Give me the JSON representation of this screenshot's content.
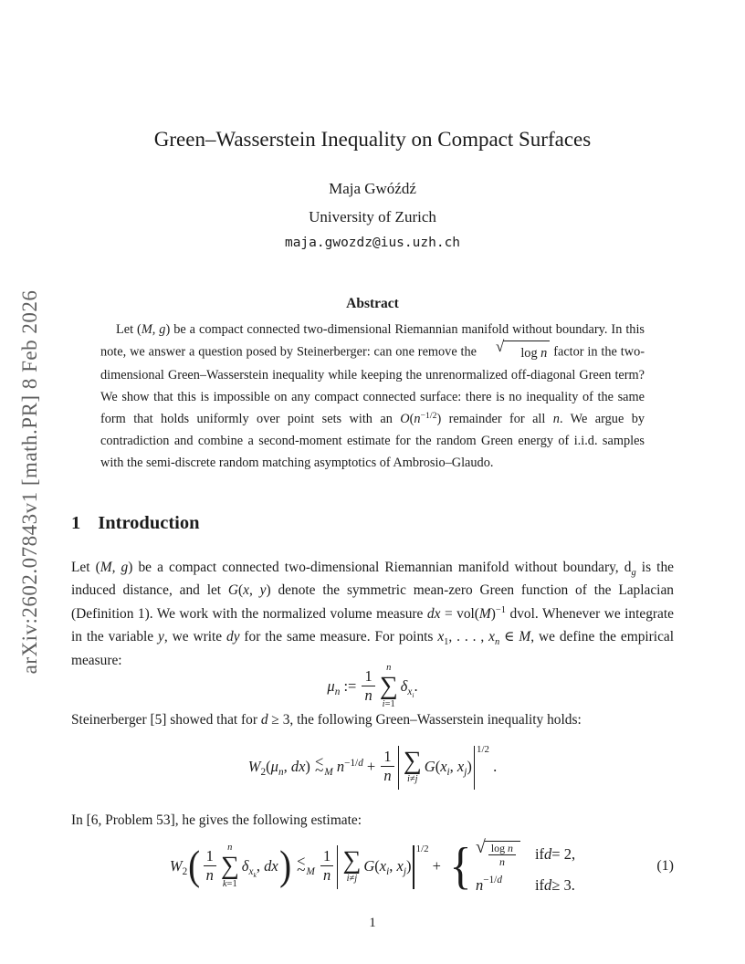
{
  "stamp": {
    "text": "arXiv:2602.07843v1  [math.PR]  8 Feb 2026"
  },
  "header": {
    "title": "Green–Wasserstein Inequality on Compact Surfaces",
    "author": "Maja Gwóźdź",
    "affiliation": "University of Zurich",
    "email": "maja.gwozdz@ius.uzh.ch"
  },
  "abstract": {
    "heading": "Abstract",
    "body": [
      {
        "t": "Let ("
      },
      {
        "s": "i",
        "t": "M, g"
      },
      {
        "t": ") be a compact connected two-dimensional Riemannian manifold without boundary. In this note, we answer a question posed by Steinerberger: can one remove the "
      },
      {
        "s": "sqrt",
        "c": [
          {
            "t": "log "
          },
          {
            "s": "i",
            "t": "n"
          }
        ]
      },
      {
        "t": " factor in the two-dimensional Green–Wasserstein inequality while keeping the unrenormalized off-diagonal Green term? We show that this is impossible on any compact connected surface: there is no inequality of the same form that holds uniformly over point sets with an "
      },
      {
        "s": "i",
        "t": "O"
      },
      {
        "t": "("
      },
      {
        "s": "i",
        "t": "n"
      },
      {
        "s": "sup",
        "t": "−1/2"
      },
      {
        "t": ") remainder for all "
      },
      {
        "s": "i",
        "t": "n"
      },
      {
        "t": ". We argue by contradiction and combine a second-moment estimate for the random Green energy of i.i.d. samples with the semi-discrete random matching asymptotics of Ambrosio–Glaudo."
      }
    ]
  },
  "section1": {
    "number": "1",
    "title": "Introduction"
  },
  "paragraphs": {
    "intro_p1": [
      {
        "t": "Let ("
      },
      {
        "s": "i",
        "t": "M, g"
      },
      {
        "t": ") be a compact connected two-dimensional Riemannian manifold without boundary, d"
      },
      {
        "s": "sub i",
        "t": "g"
      },
      {
        "t": " is the induced distance, and let "
      },
      {
        "s": "i",
        "t": "G"
      },
      {
        "t": "("
      },
      {
        "s": "i",
        "t": "x, y"
      },
      {
        "t": ") denote the symmetric mean-zero Green function of the Laplacian (Definition 1). We work with the normalized volume measure "
      },
      {
        "s": "i",
        "t": "dx"
      },
      {
        "t": " = vol("
      },
      {
        "s": "i",
        "t": "M"
      },
      {
        "t": ")"
      },
      {
        "s": "sup",
        "t": "−1"
      },
      {
        "t": " dvol. Whenever we integrate in the variable "
      },
      {
        "s": "i",
        "t": "y"
      },
      {
        "t": ", we write "
      },
      {
        "s": "i",
        "t": "dy"
      },
      {
        "t": " for the same measure. For points "
      },
      {
        "s": "i",
        "t": "x"
      },
      {
        "s": "sub",
        "t": "1"
      },
      {
        "t": ", . . . , "
      },
      {
        "s": "i",
        "t": "x"
      },
      {
        "s": "sub i",
        "t": "n"
      },
      {
        "t": " ∈ "
      },
      {
        "s": "i",
        "t": "M"
      },
      {
        "t": ", we define the empirical measure:"
      }
    ],
    "steinerberger_line": [
      {
        "t": "Steinerberger [5] showed that for "
      },
      {
        "s": "i",
        "t": "d"
      },
      {
        "t": " ≥ 3, the following Green–Wasserstein inequality holds:"
      }
    ],
    "estimate_line": [
      {
        "t": "In [6, Problem 53], he gives the following estimate:"
      }
    ]
  },
  "equations": {
    "empirical": {
      "segs": [
        {
          "s": "i",
          "t": "μ"
        },
        {
          "s": "sub i",
          "t": "n"
        },
        {
          "t": " := "
        },
        {
          "s": "frac",
          "n": [
            {
              "t": "1"
            }
          ],
          "d": [
            {
              "s": "i",
              "t": "n"
            }
          ]
        },
        {
          "s": "sum",
          "top": [
            {
              "s": "i",
              "t": "n"
            }
          ],
          "bot": [
            {
              "s": "i",
              "t": "i"
            },
            {
              "t": "=1"
            }
          ]
        },
        {
          "s": "i",
          "t": "δ"
        },
        {
          "s": "sub",
          "c": [
            {
              "s": "i",
              "t": "x"
            },
            {
              "s": "sub i",
              "t": "i"
            }
          ]
        },
        {
          "t": "."
        }
      ]
    },
    "green_wasserstein": {
      "segs": [
        {
          "s": "i",
          "t": "W"
        },
        {
          "s": "sub",
          "t": "2"
        },
        {
          "t": "("
        },
        {
          "s": "i",
          "t": "μ"
        },
        {
          "s": "sub i",
          "t": "n"
        },
        {
          "t": ", "
        },
        {
          "s": "i",
          "t": "dx"
        },
        {
          "t": ")  "
        },
        {
          "s": "lesssim"
        },
        {
          "s": "sub i",
          "t": "M"
        },
        {
          "t": "  "
        },
        {
          "s": "i",
          "t": "n"
        },
        {
          "s": "sup",
          "c": [
            {
              "t": "−1/"
            },
            {
              "s": "i",
              "t": "d"
            }
          ]
        },
        {
          "t": " + "
        },
        {
          "s": "frac",
          "n": [
            {
              "t": "1"
            }
          ],
          "d": [
            {
              "s": "i",
              "t": "n"
            }
          ]
        },
        {
          "s": "bar"
        },
        {
          "s": "sum",
          "bot": [
            {
              "s": "i",
              "t": "i"
            },
            {
              "t": "≠"
            },
            {
              "s": "i",
              "t": "j"
            }
          ]
        },
        {
          "s": "i",
          "t": "G"
        },
        {
          "t": "("
        },
        {
          "s": "i",
          "t": "x"
        },
        {
          "s": "sub i",
          "t": "i"
        },
        {
          "t": ", "
        },
        {
          "s": "i",
          "t": "x"
        },
        {
          "s": "sub i",
          "t": "j"
        },
        {
          "t": ")"
        },
        {
          "s": "bar"
        },
        {
          "s": "supbig",
          "t": "1/2"
        },
        {
          "t": " ."
        }
      ]
    },
    "main_estimate": {
      "tag": "(1)",
      "segs": [
        {
          "s": "i",
          "t": "W"
        },
        {
          "s": "sub",
          "t": "2"
        },
        {
          "s": "big",
          "t": "("
        },
        {
          "s": "frac",
          "n": [
            {
              "t": "1"
            }
          ],
          "d": [
            {
              "s": "i",
              "t": "n"
            }
          ]
        },
        {
          "s": "sum",
          "top": [
            {
              "s": "i",
              "t": "n"
            }
          ],
          "bot": [
            {
              "s": "i",
              "t": "k"
            },
            {
              "t": "=1"
            }
          ]
        },
        {
          "s": "i",
          "t": "δ"
        },
        {
          "s": "sub",
          "c": [
            {
              "s": "i",
              "t": "x"
            },
            {
              "s": "sub i",
              "t": "k"
            }
          ]
        },
        {
          "t": ", "
        },
        {
          "s": "i",
          "t": "dx"
        },
        {
          "s": "big",
          "t": ")"
        },
        {
          "t": " "
        },
        {
          "s": "lesssim"
        },
        {
          "s": "sub i",
          "t": "M"
        },
        {
          "t": " "
        },
        {
          "s": "frac",
          "n": [
            {
              "t": "1"
            }
          ],
          "d": [
            {
              "s": "i",
              "t": "n"
            }
          ]
        },
        {
          "s": "bar"
        },
        {
          "s": "sum",
          "bot": [
            {
              "s": "i",
              "t": "i"
            },
            {
              "t": "≠"
            },
            {
              "s": "i",
              "t": "j"
            }
          ]
        },
        {
          "s": "i",
          "t": "G"
        },
        {
          "t": "("
        },
        {
          "s": "i",
          "t": "x"
        },
        {
          "s": "sub i",
          "t": "i"
        },
        {
          "t": ", "
        },
        {
          "s": "i",
          "t": "x"
        },
        {
          "s": "sub i",
          "t": "j"
        },
        {
          "t": ")"
        },
        {
          "s": "bar"
        },
        {
          "s": "supbig",
          "t": "1/2"
        },
        {
          "t": "  + "
        },
        {
          "s": "cases",
          "rows": [
            [
              [
                {
                  "s": "sqrt",
                  "c": [
                    {
                      "s": "fracsm",
                      "n": [
                        {
                          "t": "log "
                        },
                        {
                          "s": "i",
                          "t": "n"
                        }
                      ],
                      "d": [
                        {
                          "s": "i",
                          "t": "n"
                        }
                      ]
                    }
                  ]
                }
              ],
              [
                {
                  "t": "if "
                },
                {
                  "s": "i",
                  "t": "d"
                },
                {
                  "t": " = 2,"
                }
              ]
            ],
            [
              [
                {
                  "s": "i",
                  "t": "n"
                },
                {
                  "s": "sup",
                  "c": [
                    {
                      "t": "−1/"
                    },
                    {
                      "s": "i",
                      "t": "d"
                    }
                  ]
                }
              ],
              [
                {
                  "t": "if "
                },
                {
                  "s": "i",
                  "t": "d"
                },
                {
                  "t": " ≥ 3."
                }
              ]
            ]
          ]
        }
      ]
    }
  },
  "footer": {
    "page_number": "1"
  }
}
